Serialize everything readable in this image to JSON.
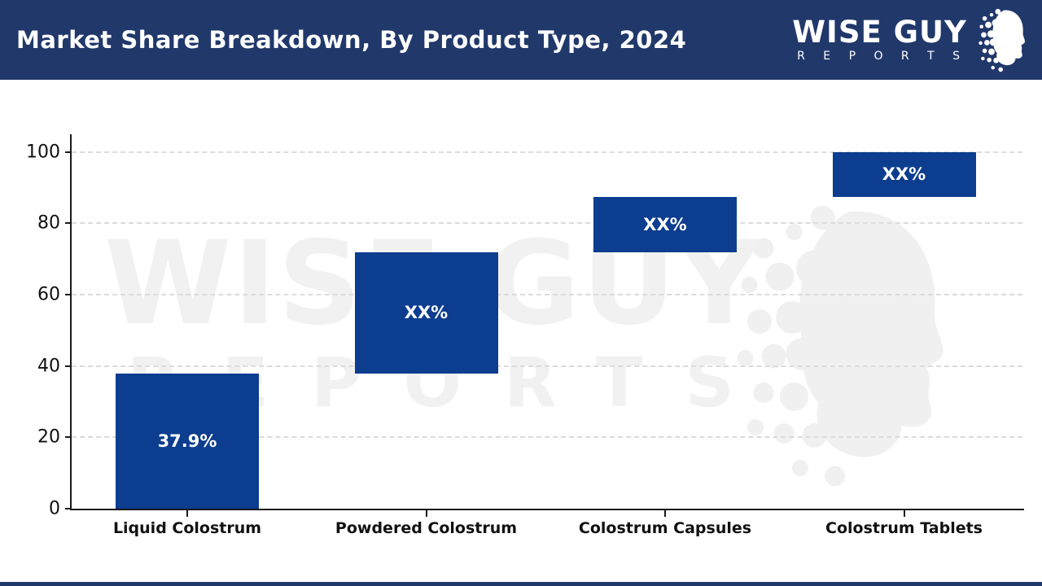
{
  "header": {
    "title": "Market Share Breakdown, By Product Type, 2024",
    "logo": {
      "line1": "WISE GUY",
      "line2": "R E P O R T S"
    }
  },
  "watermark": {
    "line1": "WISE GUY",
    "line2": "REPORTS"
  },
  "theme": {
    "navy": "#21386B",
    "bar_color": "#0C3D8F",
    "bar_label_color": "#ffffff",
    "gridline_color": "#dcdcdc",
    "watermark_color": "#f1f1f1"
  },
  "chart_data": {
    "type": "bar",
    "subtype": "waterfall",
    "title": "Market Share Breakdown, By Product Type, 2024",
    "categories": [
      "Liquid Colostrum",
      "Powdered Colostrum",
      "Colostrum Capsules",
      "Colostrum Tablets"
    ],
    "segments": [
      {
        "category": "Liquid Colostrum",
        "start": 0,
        "end": 37.9,
        "label": "37.9%"
      },
      {
        "category": "Powdered Colostrum",
        "start": 37.9,
        "end": 71.9,
        "label": "XX%"
      },
      {
        "category": "Colostrum Capsules",
        "start": 71.9,
        "end": 87.3,
        "label": "XX%"
      },
      {
        "category": "Colostrum Tablets",
        "start": 87.3,
        "end": 100,
        "label": "XX%"
      }
    ],
    "yticks": [
      0,
      20,
      40,
      60,
      80,
      100
    ],
    "ylim": [
      0,
      105
    ],
    "xlabel": "",
    "ylabel": "",
    "grid": "horizontal-dashed",
    "legend": "none"
  }
}
